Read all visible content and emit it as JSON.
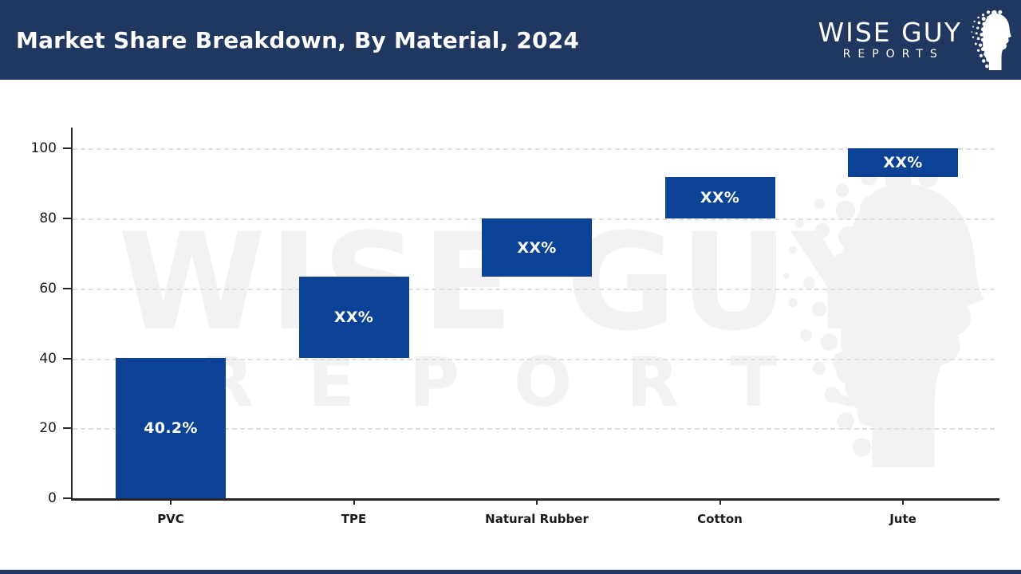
{
  "header": {
    "title": "Market Share Breakdown, By Material, 2024",
    "logo": {
      "line1": "WISE GUY",
      "line2": "REPORTS"
    }
  },
  "watermark": {
    "line1": "WISE GUY",
    "line2": "REPORTS"
  },
  "colors": {
    "header_bg": "#20375f",
    "footer_bg": "#20375f",
    "bar": "#0b4296",
    "bar_label_text": "#ffffff",
    "grid": "#e0e0e0",
    "axis": "#262626",
    "watermark": "#f2f2f4"
  },
  "chart_data": {
    "type": "bar",
    "subtype": "waterfall",
    "title": "Market Share Breakdown, By Material, 2024",
    "categories": [
      "PVC",
      "TPE",
      "Natural Rubber",
      "Cotton",
      "Jute"
    ],
    "segments": [
      {
        "category": "PVC",
        "start": 0,
        "end": 40.2,
        "label": "40.2%"
      },
      {
        "category": "TPE",
        "start": 40.2,
        "end": 63.3,
        "label": "XX%"
      },
      {
        "category": "Natural Rubber",
        "start": 63.3,
        "end": 80.0,
        "label": "XX%"
      },
      {
        "category": "Cotton",
        "start": 80.0,
        "end": 91.8,
        "label": "XX%"
      },
      {
        "category": "Jute",
        "start": 91.8,
        "end": 100.0,
        "label": "XX%"
      }
    ],
    "xlabel": "",
    "ylabel": "",
    "ylim": [
      0,
      100
    ],
    "yticks": [
      0,
      20,
      40,
      60,
      80,
      100
    ],
    "grid": "horizontal-dashed",
    "legend": "none",
    "units": "percent"
  }
}
